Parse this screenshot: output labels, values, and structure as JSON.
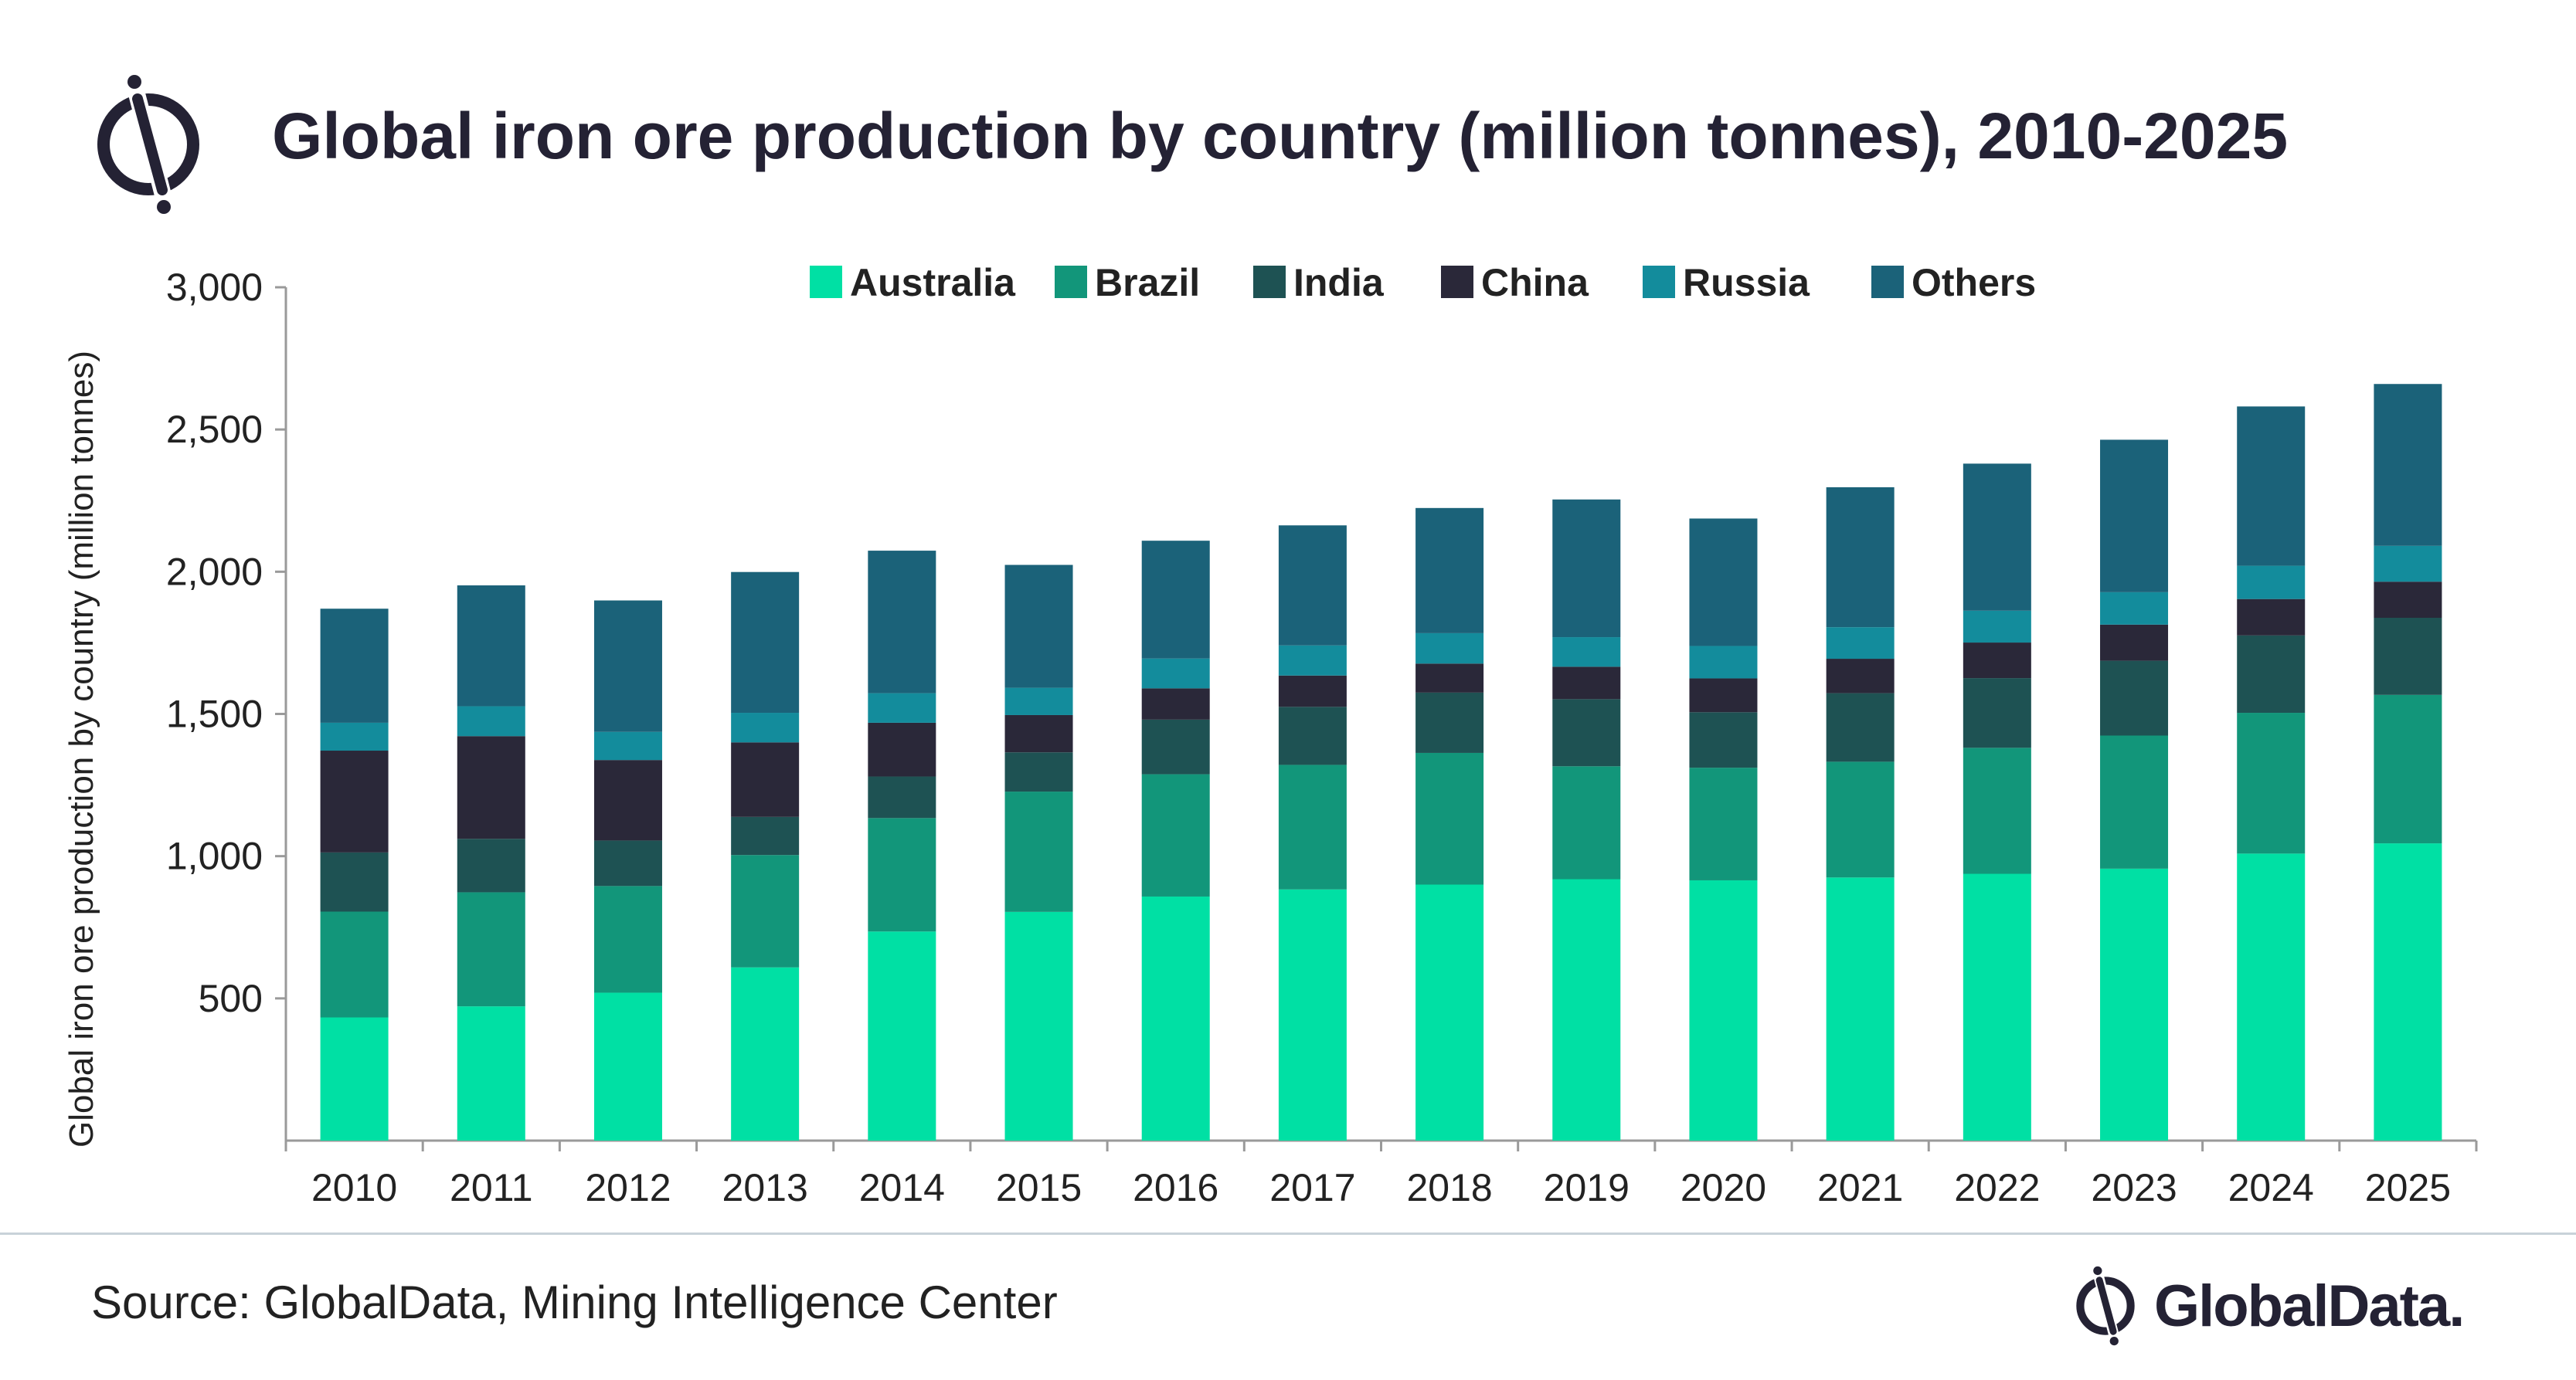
{
  "header": {
    "title": "Global iron ore production by country (million tonnes), 2010-2025",
    "logo_icon": "globaldata-logo-icon"
  },
  "footer": {
    "source": "Source: GlobalData, Mining Intelligence Center",
    "brand": "GlobalData."
  },
  "chart_data": {
    "type": "bar",
    "stacked": true,
    "title": "Global iron ore production by country (million tonnes), 2010-2025",
    "xlabel": "",
    "ylabel": "Global iron ore production by country (million tonnes)",
    "ylim": [
      0,
      3000
    ],
    "yticks": [
      500,
      1000,
      1500,
      2000,
      2500,
      3000
    ],
    "ytick_labels": [
      "500",
      "1,000",
      "1,500",
      "2,000",
      "2,500",
      "3,000"
    ],
    "grid": false,
    "legend_position": "top",
    "categories": [
      "2010",
      "2011",
      "2012",
      "2013",
      "2014",
      "2015",
      "2016",
      "2017",
      "2018",
      "2019",
      "2020",
      "2021",
      "2022",
      "2023",
      "2024",
      "2025"
    ],
    "series": [
      {
        "name": "Australia",
        "color": "#00e0a4",
        "values": [
          433,
          472,
          520,
          609,
          735,
          804,
          858,
          883,
          900,
          919,
          915,
          925,
          938,
          956,
          1009,
          1045
        ]
      },
      {
        "name": "Brazil",
        "color": "#12967a",
        "values": [
          372,
          401,
          375,
          395,
          399,
          423,
          430,
          438,
          463,
          397,
          396,
          407,
          443,
          468,
          495,
          522
        ]
      },
      {
        "name": "India",
        "color": "#1e5253",
        "values": [
          208,
          188,
          160,
          134,
          146,
          138,
          192,
          204,
          212,
          236,
          195,
          241,
          245,
          263,
          272,
          271
        ]
      },
      {
        "name": "China",
        "color": "#2a2839",
        "values": [
          358,
          361,
          283,
          262,
          189,
          131,
          110,
          110,
          102,
          114,
          119,
          121,
          125,
          127,
          128,
          127
        ]
      },
      {
        "name": "Russia",
        "color": "#138c9c",
        "values": [
          98,
          105,
          99,
          104,
          104,
          96,
          105,
          106,
          107,
          104,
          114,
          111,
          112,
          114,
          117,
          126
        ]
      },
      {
        "name": "Others",
        "color": "#1b6279",
        "values": [
          401,
          425,
          462,
          495,
          501,
          432,
          414,
          422,
          440,
          484,
          448,
          492,
          517,
          536,
          560,
          569
        ]
      }
    ]
  }
}
